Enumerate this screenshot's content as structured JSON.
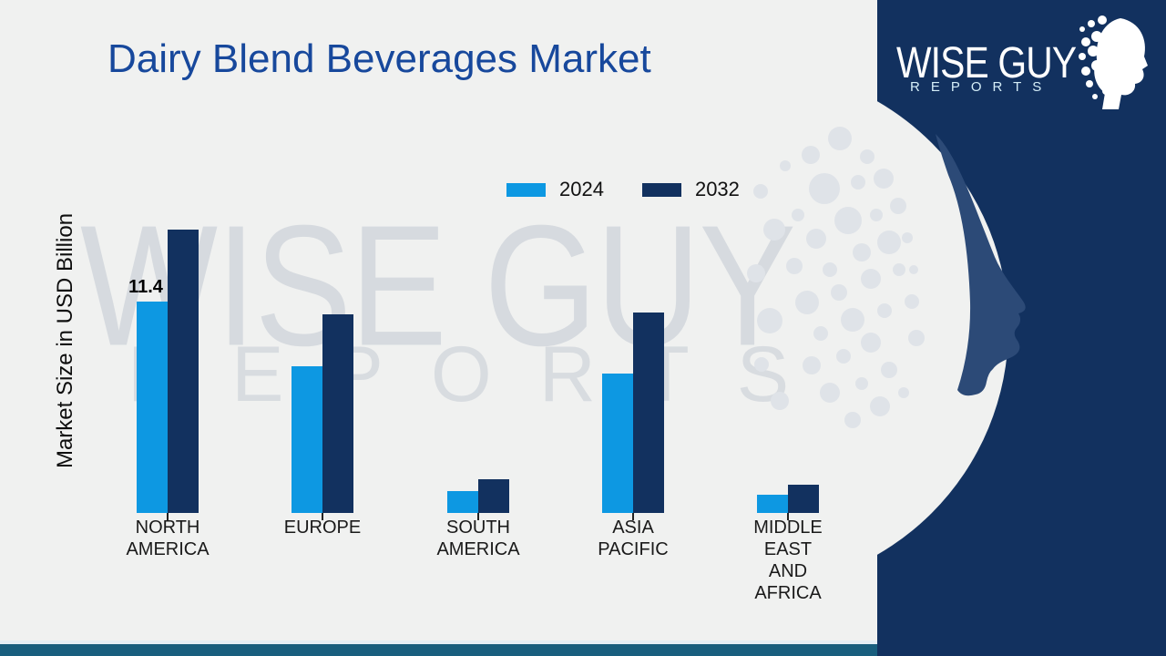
{
  "header": {
    "title": "Dairy Blend Beverages Market",
    "title_color": "#17489c"
  },
  "brand": {
    "wordmark": "WISE GUY",
    "subtitle": "REPORTS",
    "panel_color": "#12315f",
    "face_color": "#2c4a77",
    "logo_color": "#ffffff",
    "dot_color": "#dfe3e8"
  },
  "watermark": {
    "line1": "WISE GUY",
    "line2": "REPORTS"
  },
  "footer": {
    "bar_color": "#185e7e"
  },
  "chart_data": {
    "type": "bar",
    "title": "Dairy Blend Beverages Market",
    "xlabel": "",
    "ylabel": "Market Size in USD Billion",
    "categories": [
      "NORTH AMERICA",
      "EUROPE",
      "SOUTH AMERICA",
      "ASIA PACIFIC",
      "MIDDLE EAST AND AFRICA"
    ],
    "series": [
      {
        "name": "2024",
        "color": "#0d98e2",
        "values": [
          11.4,
          7.9,
          1.2,
          7.5,
          1.0
        ]
      },
      {
        "name": "2032",
        "color": "#12315f",
        "values": [
          15.3,
          10.7,
          1.8,
          10.8,
          1.5
        ]
      }
    ],
    "data_labels": [
      {
        "series": "2024",
        "category": "NORTH AMERICA",
        "text": "11.4"
      }
    ],
    "legend_position": "top",
    "grid": false,
    "ylim": [
      0,
      16
    ]
  }
}
